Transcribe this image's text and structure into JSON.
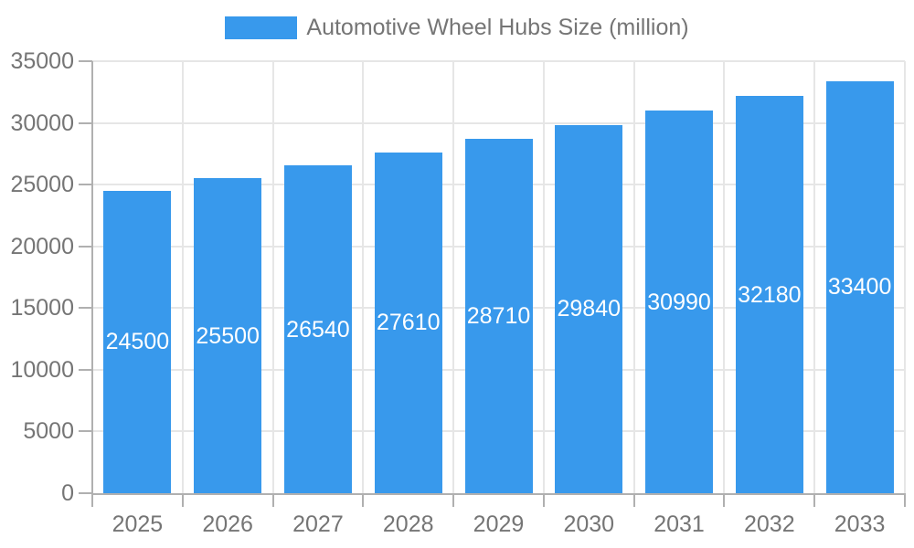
{
  "chart_data": {
    "type": "bar",
    "title": "Automotive Wheel Hubs Size (million)",
    "legend": {
      "label": "Automotive Wheel Hubs Size (million)",
      "position": "top-center"
    },
    "categories": [
      "2025",
      "2026",
      "2027",
      "2028",
      "2029",
      "2030",
      "2031",
      "2032",
      "2033"
    ],
    "series": [
      {
        "name": "Automotive Wheel Hubs Size (million)",
        "values": [
          24500,
          25500,
          26540,
          27610,
          28710,
          29840,
          30990,
          32180,
          33400
        ]
      }
    ],
    "xlabel": "",
    "ylabel": "",
    "ylim": [
      0,
      35000
    ],
    "yticks": [
      0,
      5000,
      10000,
      15000,
      20000,
      25000,
      30000,
      35000
    ],
    "grid": true,
    "bar_labels_visible": true,
    "bar_label_position": "center-inside",
    "colors": {
      "bar": "#3899ec",
      "bar_label": "#ffffff",
      "axis_line": "#b0b0b0",
      "grid_line": "#e6e6e6",
      "tick_text": "#757575",
      "legend_text": "#757575",
      "background": "#ffffff"
    }
  }
}
